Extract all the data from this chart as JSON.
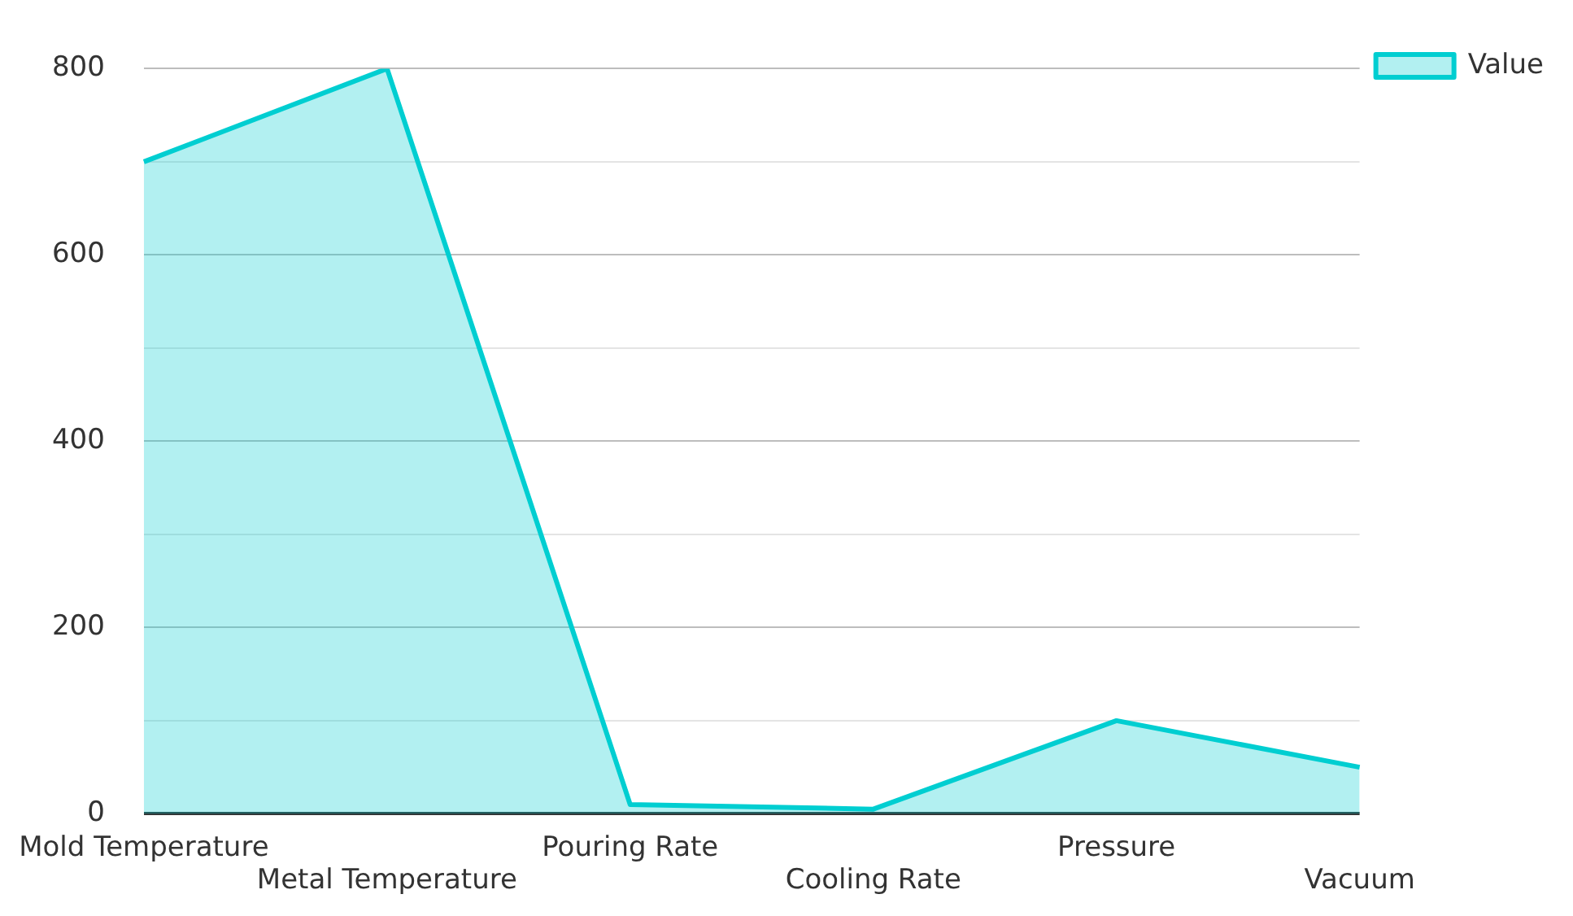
{
  "chart_data": {
    "type": "area",
    "categories": [
      "Mold Temperature",
      "Metal Temperature",
      "Pouring Rate",
      "Cooling Rate",
      "Pressure",
      "Vacuum"
    ],
    "series": [
      {
        "name": "Value",
        "color": "#00ced1",
        "values": [
          700,
          800,
          10,
          5,
          100,
          50
        ]
      }
    ],
    "ylim": [
      0,
      800
    ],
    "yticks": [
      0,
      {
        "value": 100,
        "label": null
      },
      200,
      {
        "value": 300,
        "label": null
      },
      400,
      {
        "value": 500,
        "label": null
      },
      600,
      {
        "value": 700,
        "label": null
      },
      800
    ],
    "grid": "y",
    "legend": "top right"
  }
}
